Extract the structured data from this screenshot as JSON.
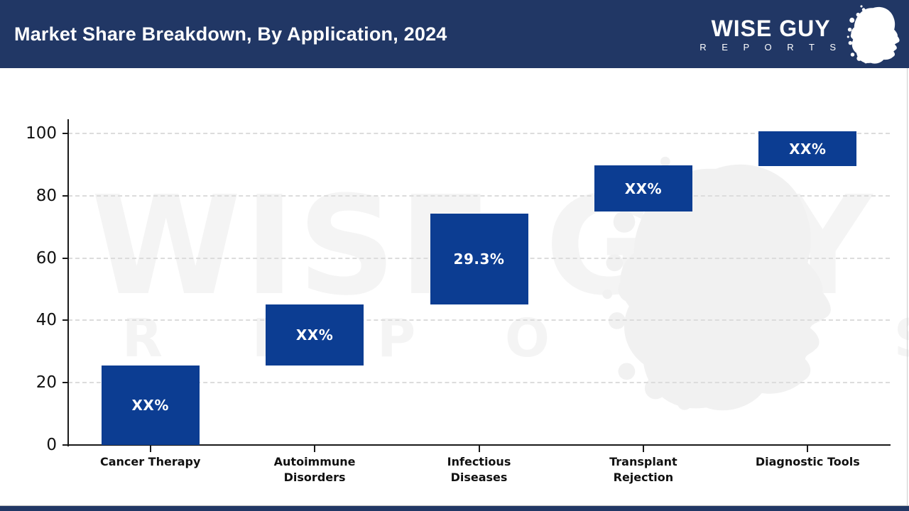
{
  "header": {
    "title": "Market Share Breakdown, By Application, 2024",
    "logo": {
      "line1": "WISE GUY",
      "line2": "R E P O R T S"
    }
  },
  "watermark": {
    "line1": "WISE GUY",
    "line2": "R E P O R T S"
  },
  "chart_data": {
    "type": "bar",
    "variant": "floating-waterfall",
    "title": "Market Share Breakdown, By Application, 2024",
    "categories": [
      "Cancer Therapy",
      "Autoimmune\nDisorders",
      "Infectious\nDiseases",
      "Transplant\nRejection",
      "Diagnostic Tools"
    ],
    "bars": [
      {
        "category": "Cancer Therapy",
        "start": 0,
        "end": 25.6,
        "label": "XX%"
      },
      {
        "category": "Autoimmune Disorders",
        "start": 25.6,
        "end": 45.0,
        "label": "XX%"
      },
      {
        "category": "Infectious Diseases",
        "start": 45.0,
        "end": 74.3,
        "label": "29.3%"
      },
      {
        "category": "Transplant Rejection",
        "start": 74.9,
        "end": 89.7,
        "label": "XX%"
      },
      {
        "category": "Diagnostic Tools",
        "start": 89.5,
        "end": 100.7,
        "label": "XX%"
      }
    ],
    "xlabel": "",
    "ylabel": "",
    "yticks": [
      0,
      20,
      40,
      60,
      80,
      100
    ],
    "ylim": [
      0,
      105
    ],
    "grid": "horizontal-dashed",
    "legend": false,
    "colors": {
      "bar": "#0c3d92",
      "bar_label": "#ffffff",
      "axis": "#1a1a1a",
      "grid": "#dcdcdc",
      "header_bg": "#213765",
      "watermark": "#f2f2f2"
    }
  }
}
